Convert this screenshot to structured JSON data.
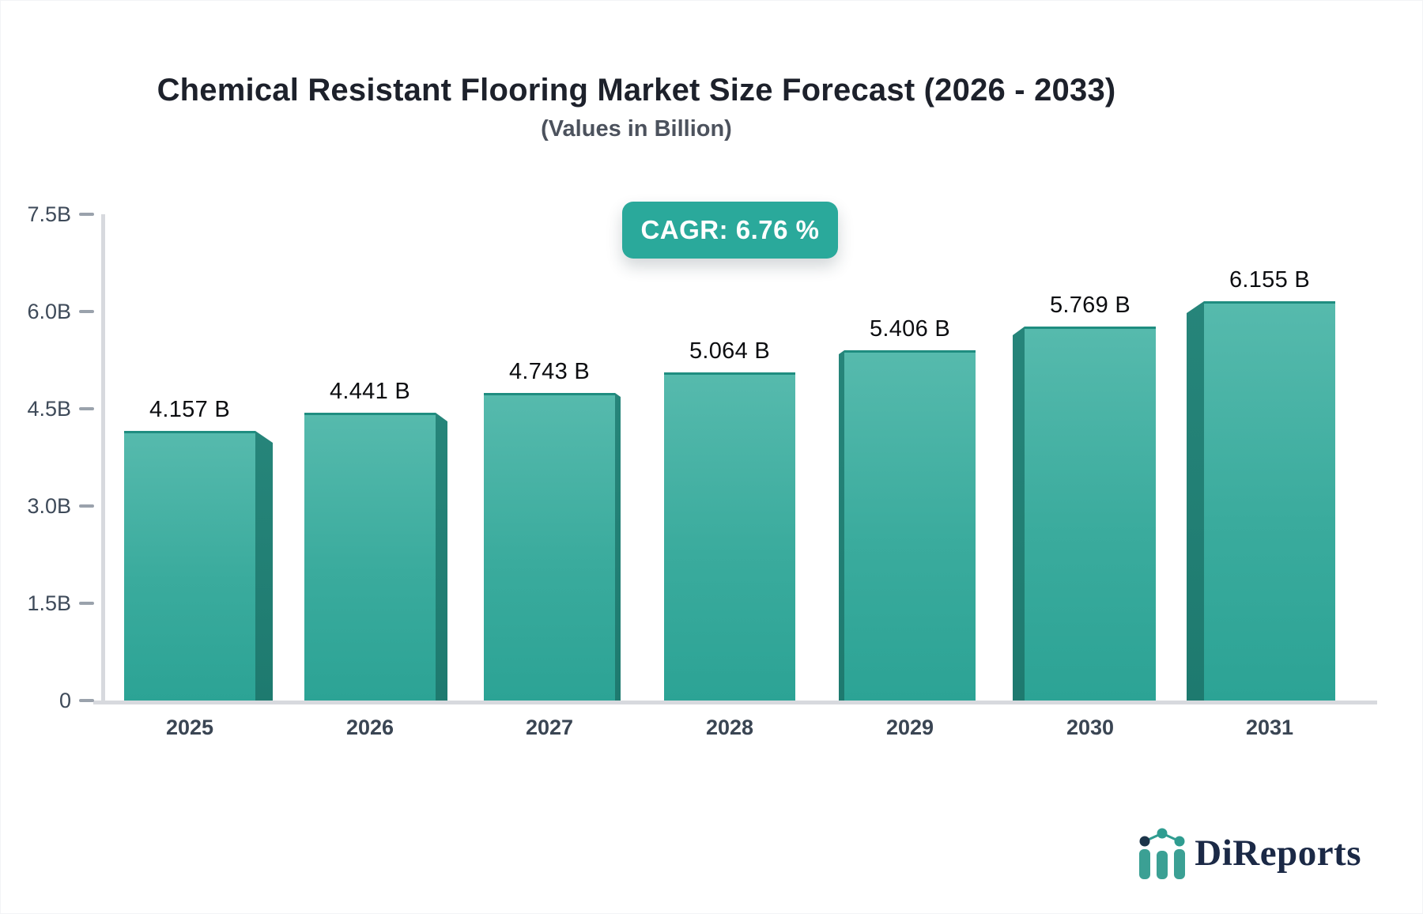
{
  "header": {
    "title": "Chemical Resistant Flooring Market Size Forecast (2026 - 2033)",
    "subtitle": "(Values in Billion)"
  },
  "badge": {
    "label": "CAGR: 6.76 %"
  },
  "chart_data": {
    "type": "bar",
    "title": "Chemical Resistant Flooring Market Size Forecast (2026 - 2033)",
    "subtitle": "(Values in Billion)",
    "cagr": "6.76 %",
    "categories": [
      "2025",
      "2026",
      "2027",
      "2028",
      "2029",
      "2030",
      "2031"
    ],
    "values": [
      4.157,
      4.441,
      4.743,
      5.064,
      5.406,
      5.769,
      6.155
    ],
    "value_labels": [
      "4.157 B",
      "4.441 B",
      "4.743 B",
      "5.064 B",
      "5.406 B",
      "5.769 B",
      "6.155 B"
    ],
    "unit": "Billion",
    "ylim": [
      0,
      7.5
    ],
    "yticks": [
      {
        "value": 7.5,
        "label": "7.5B"
      },
      {
        "value": 6.0,
        "label": "6.0B"
      },
      {
        "value": 4.5,
        "label": "4.5B"
      },
      {
        "value": 3.0,
        "label": "3.0B"
      },
      {
        "value": 1.5,
        "label": "1.5B"
      },
      {
        "value": 0,
        "label": "0"
      }
    ],
    "grid": false,
    "legend": "none",
    "colors": {
      "bar_top": "#56baad",
      "bar_bottom": "#2ca395",
      "bar_side": "#1e7a6f",
      "badge_bg": "#2aa99b",
      "axis_line": "#d7d9de",
      "tick": "#9aa2ac",
      "title_text": "#1d212b",
      "label_text": "#3e4a59"
    }
  },
  "logo": {
    "text": "DiReports",
    "icon": "bar-chart-logo-icon"
  }
}
